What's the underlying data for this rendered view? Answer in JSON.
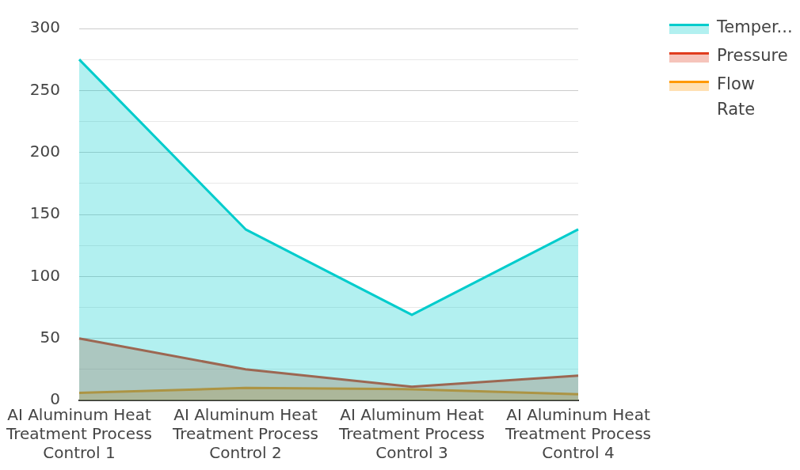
{
  "chart_data": {
    "type": "area",
    "categories": [
      "AI Aluminum Heat Treatment Process Control 1",
      "AI Aluminum Heat Treatment Process Control 2",
      "AI Aluminum Heat Treatment Process Control 3",
      "AI Aluminum Heat Treatment Process Control 4"
    ],
    "series": [
      {
        "name": "Temper...",
        "color": "#00cccc",
        "values": [
          275,
          138,
          69,
          138
        ]
      },
      {
        "name": "Pressure",
        "color": "#e03c1e",
        "values": [
          50,
          25,
          11,
          20
        ]
      },
      {
        "name": "Flow Rate",
        "color": "#ff9900",
        "values": [
          6,
          10,
          9,
          5
        ]
      }
    ],
    "ylim": [
      0,
      300
    ],
    "yticks": [
      0,
      {
        "value": 25,
        "label": null
      },
      50,
      {
        "value": 75,
        "label": null
      },
      100,
      {
        "value": 125,
        "label": null
      },
      150,
      {
        "value": 175,
        "label": null
      },
      200,
      {
        "value": 225,
        "label": null
      },
      250,
      {
        "value": 275,
        "label": null
      },
      300
    ],
    "grid": "y",
    "legend": "right",
    "marker": "none",
    "line_style": "solid"
  }
}
